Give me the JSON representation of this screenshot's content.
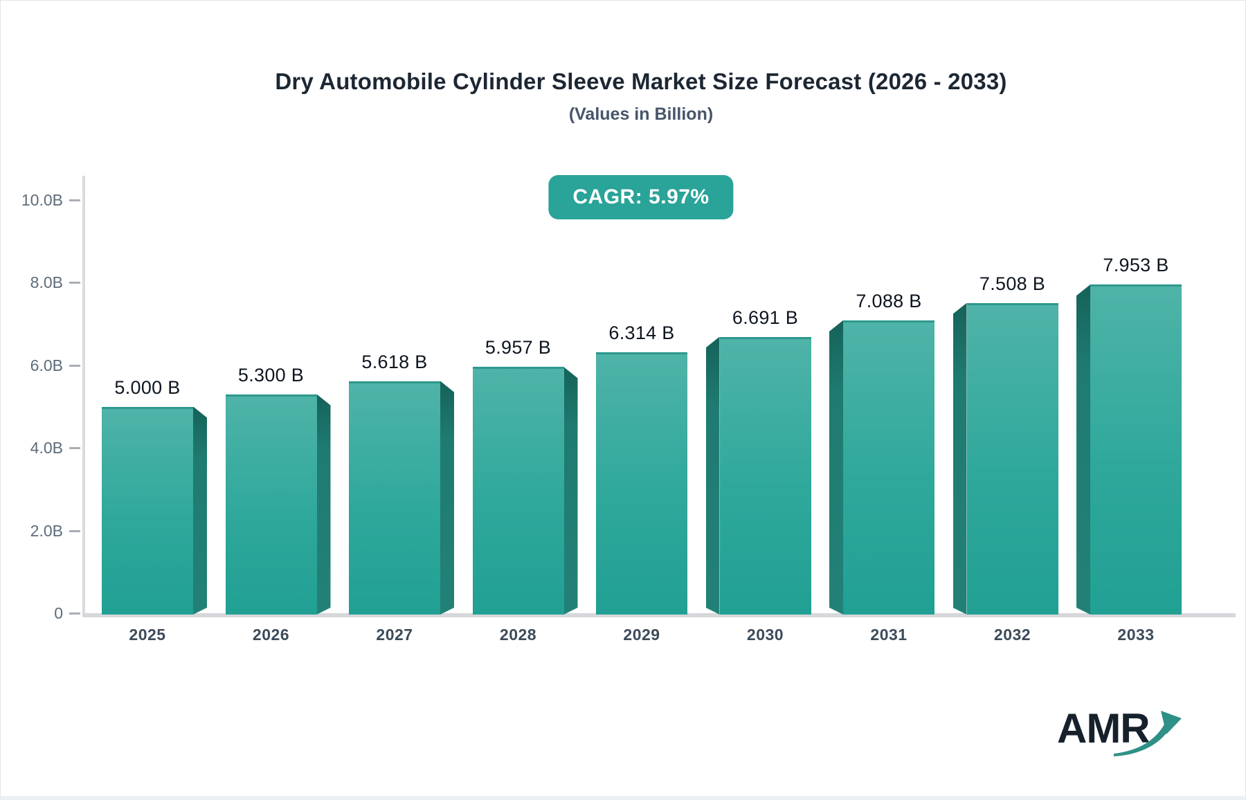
{
  "header": {
    "title": "Dry Automobile Cylinder Sleeve Market Size Forecast (2026 - 2033)",
    "subtitle": "(Values in Billion)",
    "cagr_badge": "CAGR: 5.97%"
  },
  "chart_data": {
    "type": "bar",
    "title": "Dry Automobile Cylinder Sleeve Market Size Forecast (2026 - 2033)",
    "subtitle": "(Values in Billion)",
    "cagr_percent": 5.97,
    "categories": [
      "2025",
      "2026",
      "2027",
      "2028",
      "2029",
      "2030",
      "2031",
      "2032",
      "2033"
    ],
    "values": [
      5.0,
      5.3,
      5.618,
      5.957,
      6.314,
      6.691,
      7.088,
      7.508,
      7.953
    ],
    "value_labels": [
      "5.000 B",
      "5.300 B",
      "5.618 B",
      "5.957 B",
      "6.314 B",
      "6.691 B",
      "7.088 B",
      "7.508 B",
      "7.953 B"
    ],
    "unit": "Billion",
    "xlabel": "",
    "ylabel": "",
    "ylim": [
      0,
      10
    ],
    "ytick_labels": [
      "10.0B",
      "8.0B",
      "6.0B",
      "4.0B",
      "2.0B",
      "0"
    ],
    "ytick_values": [
      10,
      8,
      6,
      4,
      2,
      0
    ],
    "grid": false,
    "legend": "none",
    "bar_face_color": "#2fa89b",
    "bar_side_color": "#1f7b71",
    "accent_color": "#2aa398"
  },
  "branding": {
    "logo_text": "AMR",
    "logo_icon": "growth-arrow-icon",
    "logo_text_color": "#16212c",
    "logo_arrow_color": "#2e9086"
  }
}
